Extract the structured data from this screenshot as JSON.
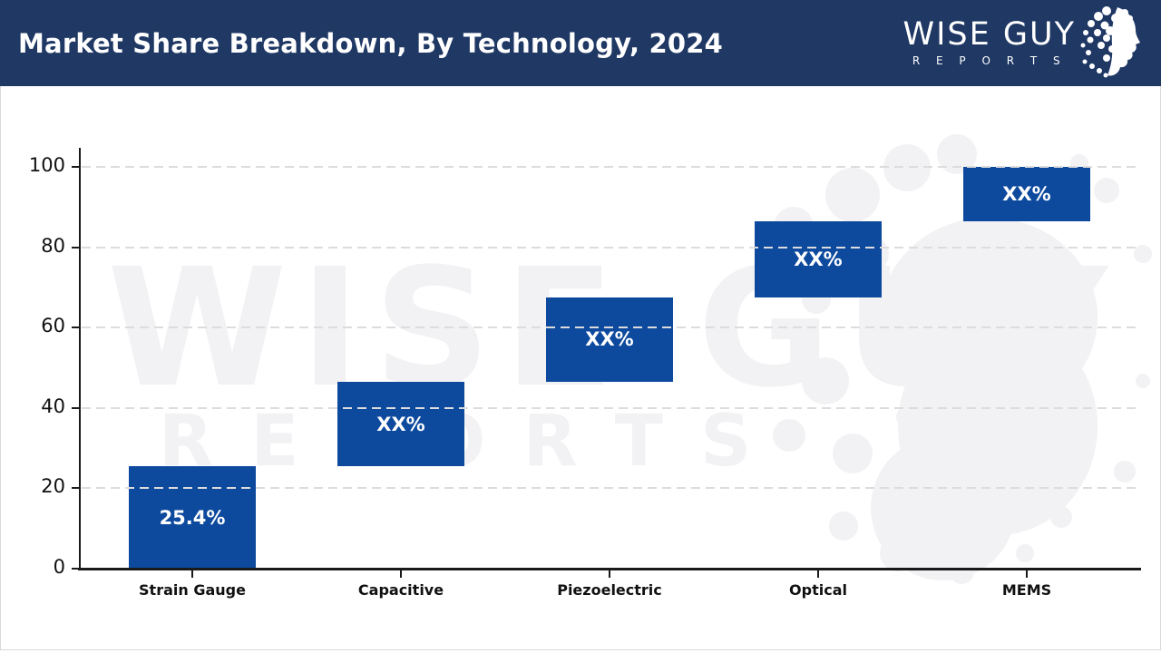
{
  "header": {
    "title": "Market Share Breakdown, By Technology, 2024",
    "logo": {
      "name": "WISE GUY",
      "tagline": "R E P O R T S"
    }
  },
  "watermark": {
    "line1": "WISE GUY",
    "line2": "R E P O R T S"
  },
  "chart_data": {
    "type": "bar",
    "subtype": "floating-segment-waterfall",
    "title": "Market Share Breakdown, By Technology, 2024",
    "categories": [
      "Strain Gauge",
      "Capacitive",
      "Piezoelectric",
      "Optical",
      "MEMS"
    ],
    "series": [
      {
        "name": "Market Share (%)",
        "segments": [
          {
            "category": "Strain Gauge",
            "start": 0,
            "end": 25.4,
            "label": "25.4%"
          },
          {
            "category": "Capacitive",
            "start": 25.4,
            "end": 46.5,
            "label": "XX%"
          },
          {
            "category": "Piezoelectric",
            "start": 46.5,
            "end": 67.5,
            "label": "XX%"
          },
          {
            "category": "Optical",
            "start": 67.5,
            "end": 86.5,
            "label": "XX%"
          },
          {
            "category": "MEMS",
            "start": 86.5,
            "end": 100,
            "label": "XX%"
          }
        ]
      }
    ],
    "y_ticks": [
      0,
      20,
      40,
      60,
      80,
      100
    ],
    "ylim": [
      0,
      105
    ],
    "xlabel": "",
    "ylabel": "",
    "grid": {
      "horizontal": true,
      "style": "dashed"
    },
    "legend": "none"
  },
  "colors": {
    "header_bg": "#1f3864",
    "bar": "#0d4a9e",
    "bar_label": "#ffffff",
    "axis": "#1a1a1a",
    "grid": "#dcdcdc",
    "watermark": "#f2f2f4",
    "card_border": "#d8d8d8"
  }
}
